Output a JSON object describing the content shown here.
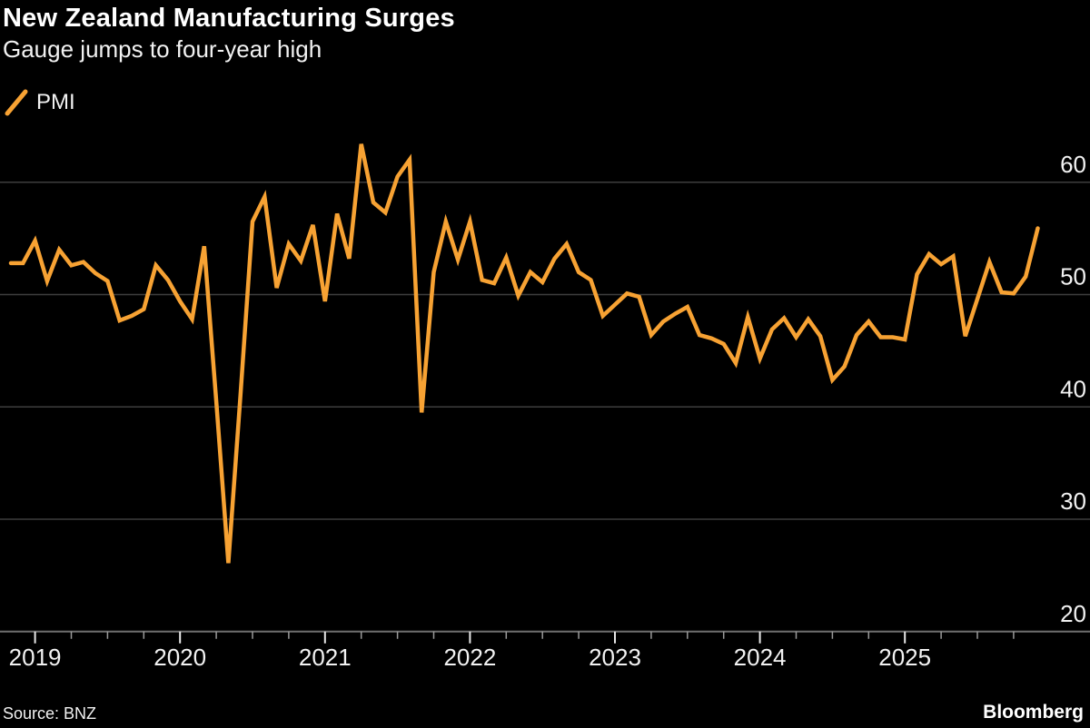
{
  "header": {
    "title": "New Zealand Manufacturing Surges",
    "subtitle": "Gauge jumps to four-year high"
  },
  "legend": {
    "label": "PMI"
  },
  "footer": {
    "source": "Source: BNZ",
    "brand": "Bloomberg"
  },
  "colors": {
    "background": "#000000",
    "line": "#f7a233",
    "grid": "#3e3e3e",
    "axis_baseline": "#6f6f6f",
    "tick_major": "#e8e8e8",
    "tick_minor": "#9a9a9a",
    "label_text": "#f2f2f2"
  },
  "chart_data": {
    "type": "line",
    "title": "New Zealand Manufacturing Surges",
    "subtitle": "Gauge jumps to four-year high",
    "series_name": "PMI",
    "frequency": "monthly",
    "start_month": "2018-10",
    "end_month": "2025-11",
    "values": [
      52.8,
      52.8,
      54.8,
      51.2,
      54.0,
      52.6,
      52.9,
      51.9,
      51.2,
      47.7,
      48.1,
      48.7,
      52.6,
      51.3,
      49.4,
      47.8,
      54.3,
      40.5,
      26.1,
      41.0,
      56.5,
      58.7,
      50.6,
      54.5,
      53.0,
      56.2,
      49.4,
      57.2,
      53.2,
      63.4,
      58.2,
      57.3,
      60.5,
      62.0,
      39.5,
      52.0,
      56.5,
      53.1,
      56.5,
      51.3,
      51.0,
      53.3,
      49.9,
      52.0,
      51.1,
      53.2,
      54.5,
      52.0,
      51.3,
      48.1,
      49.1,
      50.1,
      49.8,
      46.4,
      47.6,
      48.3,
      48.9,
      46.4,
      46.1,
      45.6,
      43.9,
      48.0,
      44.3,
      46.9,
      47.9,
      46.2,
      47.8,
      46.3,
      42.4,
      43.6,
      46.4,
      47.6,
      46.2,
      46.2,
      46.0,
      51.8,
      53.6,
      52.7,
      53.4,
      46.3,
      49.6,
      52.9,
      50.2,
      50.1,
      51.6,
      55.9
    ],
    "x_tick_years": [
      "2019",
      "2020",
      "2021",
      "2022",
      "2023",
      "2024",
      "2025"
    ],
    "y_ticks": [
      20,
      30,
      40,
      50,
      60
    ],
    "ylim": [
      20,
      64
    ],
    "grid": "horizontal-only",
    "y_axis_side": "right",
    "legend_position": "top-left"
  }
}
